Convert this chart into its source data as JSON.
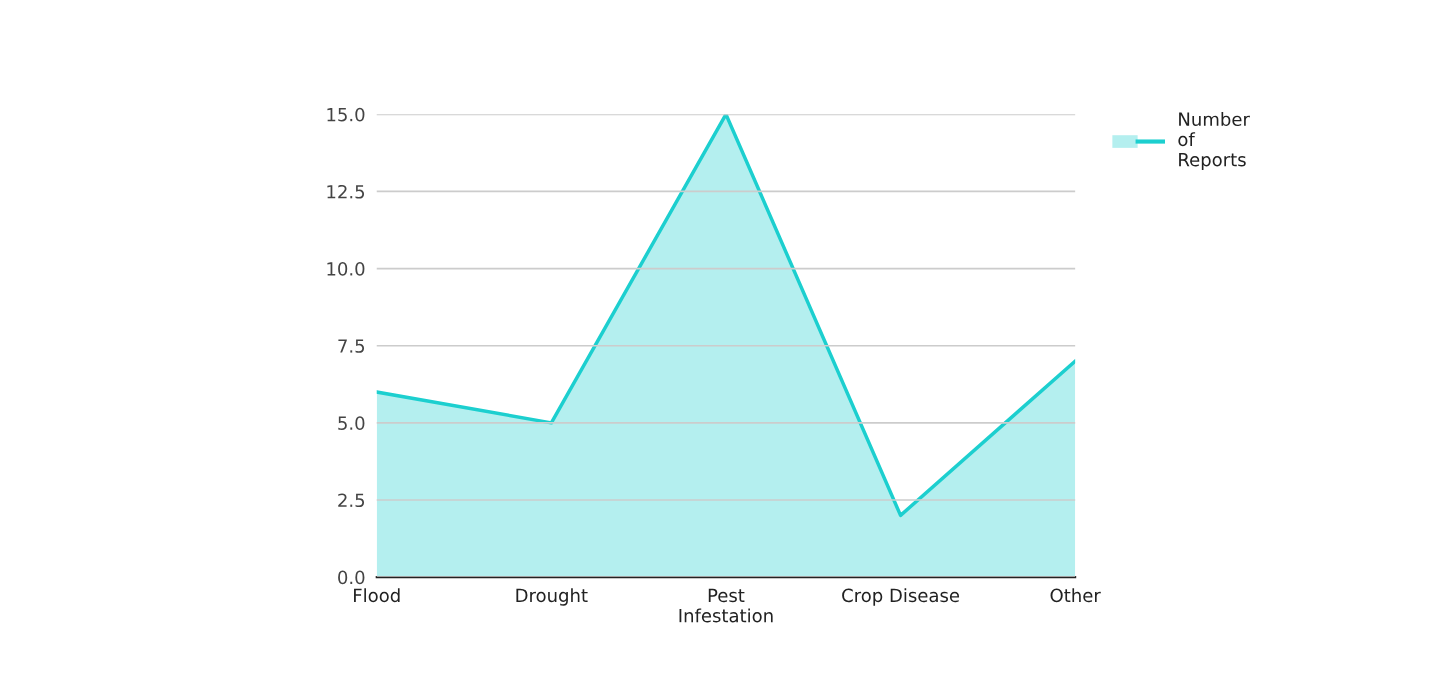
{
  "chart_data": {
    "type": "area",
    "categories": [
      "Flood",
      "Drought",
      "Pest Infestation",
      "Crop Disease",
      "Other"
    ],
    "series": [
      {
        "name": "Number of Reports",
        "color": "#1ccfcf",
        "values": [
          6,
          5,
          15,
          2,
          7
        ]
      }
    ],
    "ylim": [
      0,
      15
    ],
    "yticks": [
      {
        "value": 0,
        "label": "0.0"
      },
      {
        "value": 2.5,
        "label": "2.5"
      },
      {
        "value": 5,
        "label": "5.0"
      },
      {
        "value": 7.5,
        "label": "7.5"
      },
      {
        "value": 10,
        "label": "10.0"
      },
      {
        "value": 12.5,
        "label": "12.5"
      },
      {
        "value": 15,
        "label": "15.0"
      }
    ],
    "grid": "y",
    "legend": "top right"
  }
}
